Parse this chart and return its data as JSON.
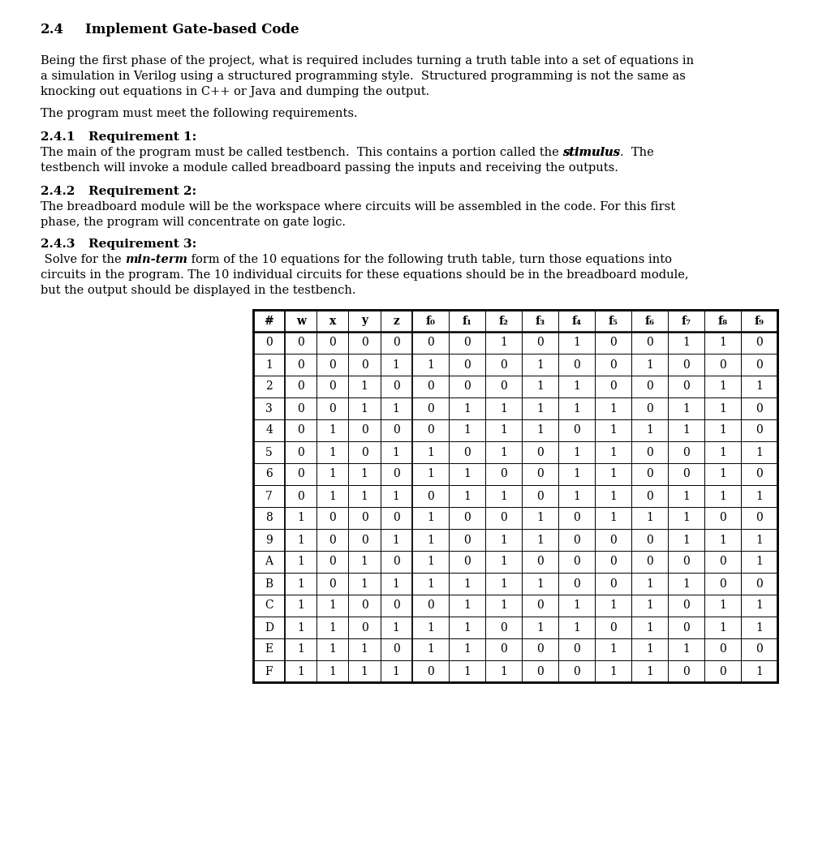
{
  "col_headers": [
    "#",
    "w",
    "x",
    "y",
    "z",
    "f₀",
    "f₁",
    "f₂",
    "f₃",
    "f₄",
    "f₅",
    "f₆",
    "f₇",
    "f₈",
    "f₉"
  ],
  "row_labels": [
    "0",
    "1",
    "2",
    "3",
    "4",
    "5",
    "6",
    "7",
    "8",
    "9",
    "A",
    "B",
    "C",
    "D",
    "E",
    "F"
  ],
  "table_data": [
    [
      0,
      0,
      0,
      0,
      0,
      0,
      1,
      0,
      1,
      0,
      0,
      1,
      1,
      0
    ],
    [
      0,
      0,
      0,
      1,
      1,
      0,
      0,
      1,
      0,
      0,
      1,
      0,
      0,
      0
    ],
    [
      0,
      0,
      1,
      0,
      0,
      0,
      0,
      1,
      1,
      0,
      0,
      0,
      1,
      1
    ],
    [
      0,
      0,
      1,
      1,
      0,
      1,
      1,
      1,
      1,
      1,
      0,
      1,
      1,
      0
    ],
    [
      0,
      1,
      0,
      0,
      0,
      1,
      1,
      1,
      0,
      1,
      1,
      1,
      1,
      0
    ],
    [
      0,
      1,
      0,
      1,
      1,
      0,
      1,
      0,
      1,
      1,
      0,
      0,
      1,
      1
    ],
    [
      0,
      1,
      1,
      0,
      1,
      1,
      0,
      0,
      1,
      1,
      0,
      0,
      1,
      0
    ],
    [
      0,
      1,
      1,
      1,
      0,
      1,
      1,
      0,
      1,
      1,
      0,
      1,
      1,
      1
    ],
    [
      1,
      0,
      0,
      0,
      1,
      0,
      0,
      1,
      0,
      1,
      1,
      1,
      0,
      0
    ],
    [
      1,
      0,
      0,
      1,
      1,
      0,
      1,
      1,
      0,
      0,
      0,
      1,
      1,
      1
    ],
    [
      1,
      0,
      1,
      0,
      1,
      0,
      1,
      0,
      0,
      0,
      0,
      0,
      0,
      1
    ],
    [
      1,
      0,
      1,
      1,
      1,
      1,
      1,
      1,
      0,
      0,
      1,
      1,
      0,
      0
    ],
    [
      1,
      1,
      0,
      0,
      0,
      1,
      1,
      0,
      1,
      1,
      1,
      0,
      1,
      1
    ],
    [
      1,
      1,
      0,
      1,
      1,
      1,
      0,
      1,
      1,
      0,
      1,
      0,
      1,
      1
    ],
    [
      1,
      1,
      1,
      0,
      1,
      1,
      0,
      0,
      0,
      1,
      1,
      1,
      0,
      0
    ],
    [
      1,
      1,
      1,
      1,
      0,
      1,
      1,
      0,
      0,
      1,
      1,
      0,
      0,
      1
    ]
  ],
  "bg_color": "#ffffff",
  "text_color": "#000000"
}
